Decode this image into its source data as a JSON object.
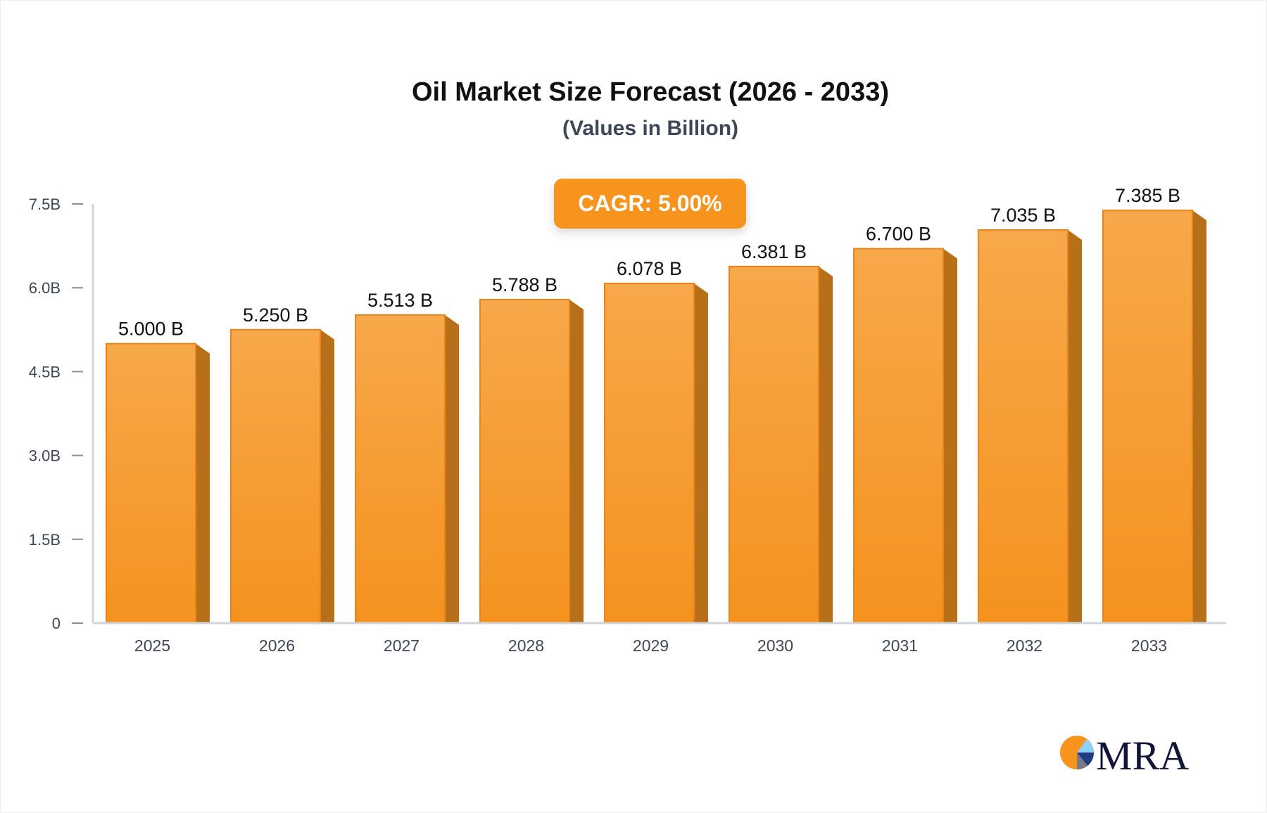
{
  "chart_data": {
    "type": "bar",
    "title": "Oil Market Size Forecast (2026 - 2033)",
    "subtitle": "(Values in Billion)",
    "categories": [
      "2025",
      "2026",
      "2027",
      "2028",
      "2029",
      "2030",
      "2031",
      "2032",
      "2033"
    ],
    "values": [
      5.0,
      5.25,
      5.513,
      5.788,
      6.078,
      6.381,
      6.7,
      7.035,
      7.385
    ],
    "data_labels": [
      "5.000 B",
      "5.250 B",
      "5.513 B",
      "5.788 B",
      "6.078 B",
      "6.381 B",
      "6.700 B",
      "7.035 B",
      "7.385 B"
    ],
    "yticks": [
      0,
      1.5,
      3.0,
      4.5,
      6.0,
      7.5
    ],
    "ytick_labels": [
      "0",
      "1.5B",
      "3.0B",
      "4.5B",
      "6.0B",
      "7.5B"
    ],
    "ylim": [
      0,
      7.5
    ],
    "xlabel": "",
    "ylabel": "",
    "grid": false,
    "annotation": "CAGR: 5.00%",
    "colors": {
      "bar_top": "#f7a84a",
      "bar_bottom": "#f5921f",
      "bar_side": "#b86f1a",
      "axis": "#d1d5db",
      "accent": "#f7941d"
    }
  },
  "logo": {
    "text": "MRA"
  }
}
